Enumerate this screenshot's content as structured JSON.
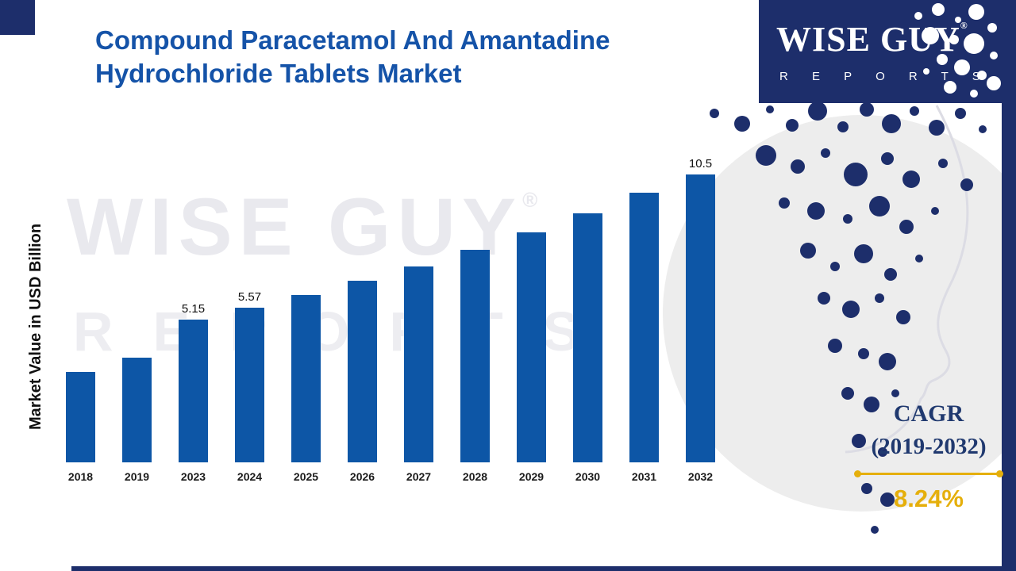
{
  "title": {
    "line1": "Compound Paracetamol And Amantadine",
    "line2": "Hydrochloride Tablets Market"
  },
  "brand": {
    "name": "WISE GUY",
    "registered": "®",
    "sub": "R E P O R T S"
  },
  "watermark": {
    "line1": "WISE GUY",
    "line2": "REPORTS"
  },
  "cagr": {
    "label": "CAGR",
    "range": "(2019-2032)",
    "value": "8.24%"
  },
  "colors": {
    "navy": "#1d2e6b",
    "bar": "#0d56a6",
    "title_blue": "#1553a8",
    "gold": "#e5af0b",
    "cagr_text": "#20396f",
    "circle_gray": "#ededed",
    "watermark_gray": "#e9e9ee"
  },
  "chart_data": {
    "type": "bar",
    "title": "Compound Paracetamol And Amantadine Hydrochloride Tablets Market",
    "xlabel": "",
    "ylabel": "Market Value in USD Billion",
    "unit": "USD Billion",
    "categories": [
      "2018",
      "2019",
      "2023",
      "2024",
      "2025",
      "2026",
      "2027",
      "2028",
      "2029",
      "2030",
      "2031",
      "2032"
    ],
    "values": [
      3.25,
      3.76,
      5.15,
      5.57,
      6.03,
      6.53,
      7.06,
      7.65,
      8.28,
      8.96,
      9.7,
      10.5
    ],
    "labels": {
      "2023": "5.15",
      "2024": "5.57",
      "2032": "10.5"
    },
    "ylim": [
      0,
      11
    ],
    "grid": false,
    "legend": false
  }
}
